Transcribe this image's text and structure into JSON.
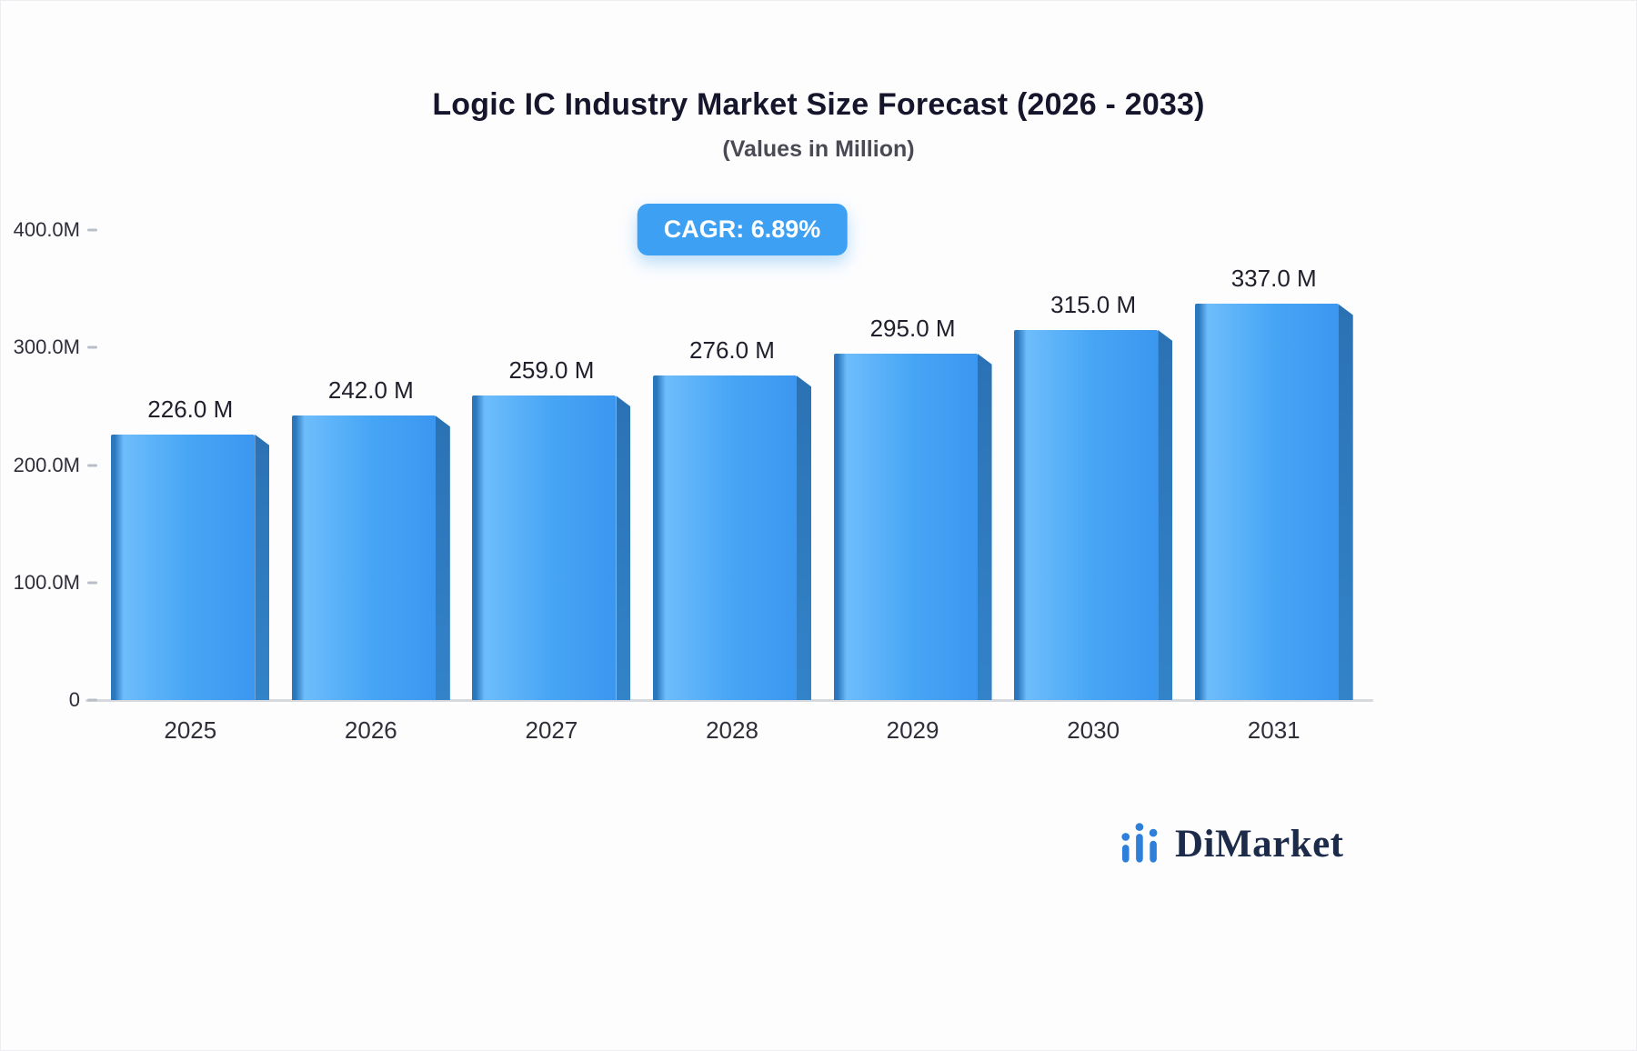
{
  "header": {
    "title": "Logic IC Industry Market Size Forecast (2026 - 2033)",
    "subtitle": "(Values in Million)"
  },
  "chart_data": {
    "type": "bar",
    "title": "Logic IC Industry Market Size Forecast (2026 - 2033)",
    "subtitle": "(Values in Million)",
    "annotation": "CAGR: 6.89%",
    "categories": [
      "2025",
      "2026",
      "2027",
      "2028",
      "2029",
      "2030",
      "2031"
    ],
    "values": [
      226.0,
      242.0,
      259.0,
      276.0,
      295.0,
      315.0,
      337.0
    ],
    "value_labels": [
      "226.0 M",
      "242.0 M",
      "259.0 M",
      "276.0 M",
      "295.0 M",
      "315.0 M",
      "337.0 M"
    ],
    "unit": "Million",
    "ylim": [
      0,
      400
    ],
    "yticks": [
      0,
      100,
      200,
      300,
      400
    ],
    "ytick_labels": [
      "0",
      "100.0M",
      "200.0M",
      "300.0M",
      "400.0M"
    ],
    "grid": false,
    "legend": false,
    "colors": {
      "bar_front": "#47a5f5",
      "bar_side": "#2b72b4",
      "badge_bg": "#3da0f2",
      "badge_text": "#ffffff",
      "axis_line": "#d6d9de"
    }
  },
  "footer": {
    "brand": "DiMarket",
    "brand_icon": "bar-chart-logo-icon",
    "brand_icon_color": "#2e7fd9"
  }
}
